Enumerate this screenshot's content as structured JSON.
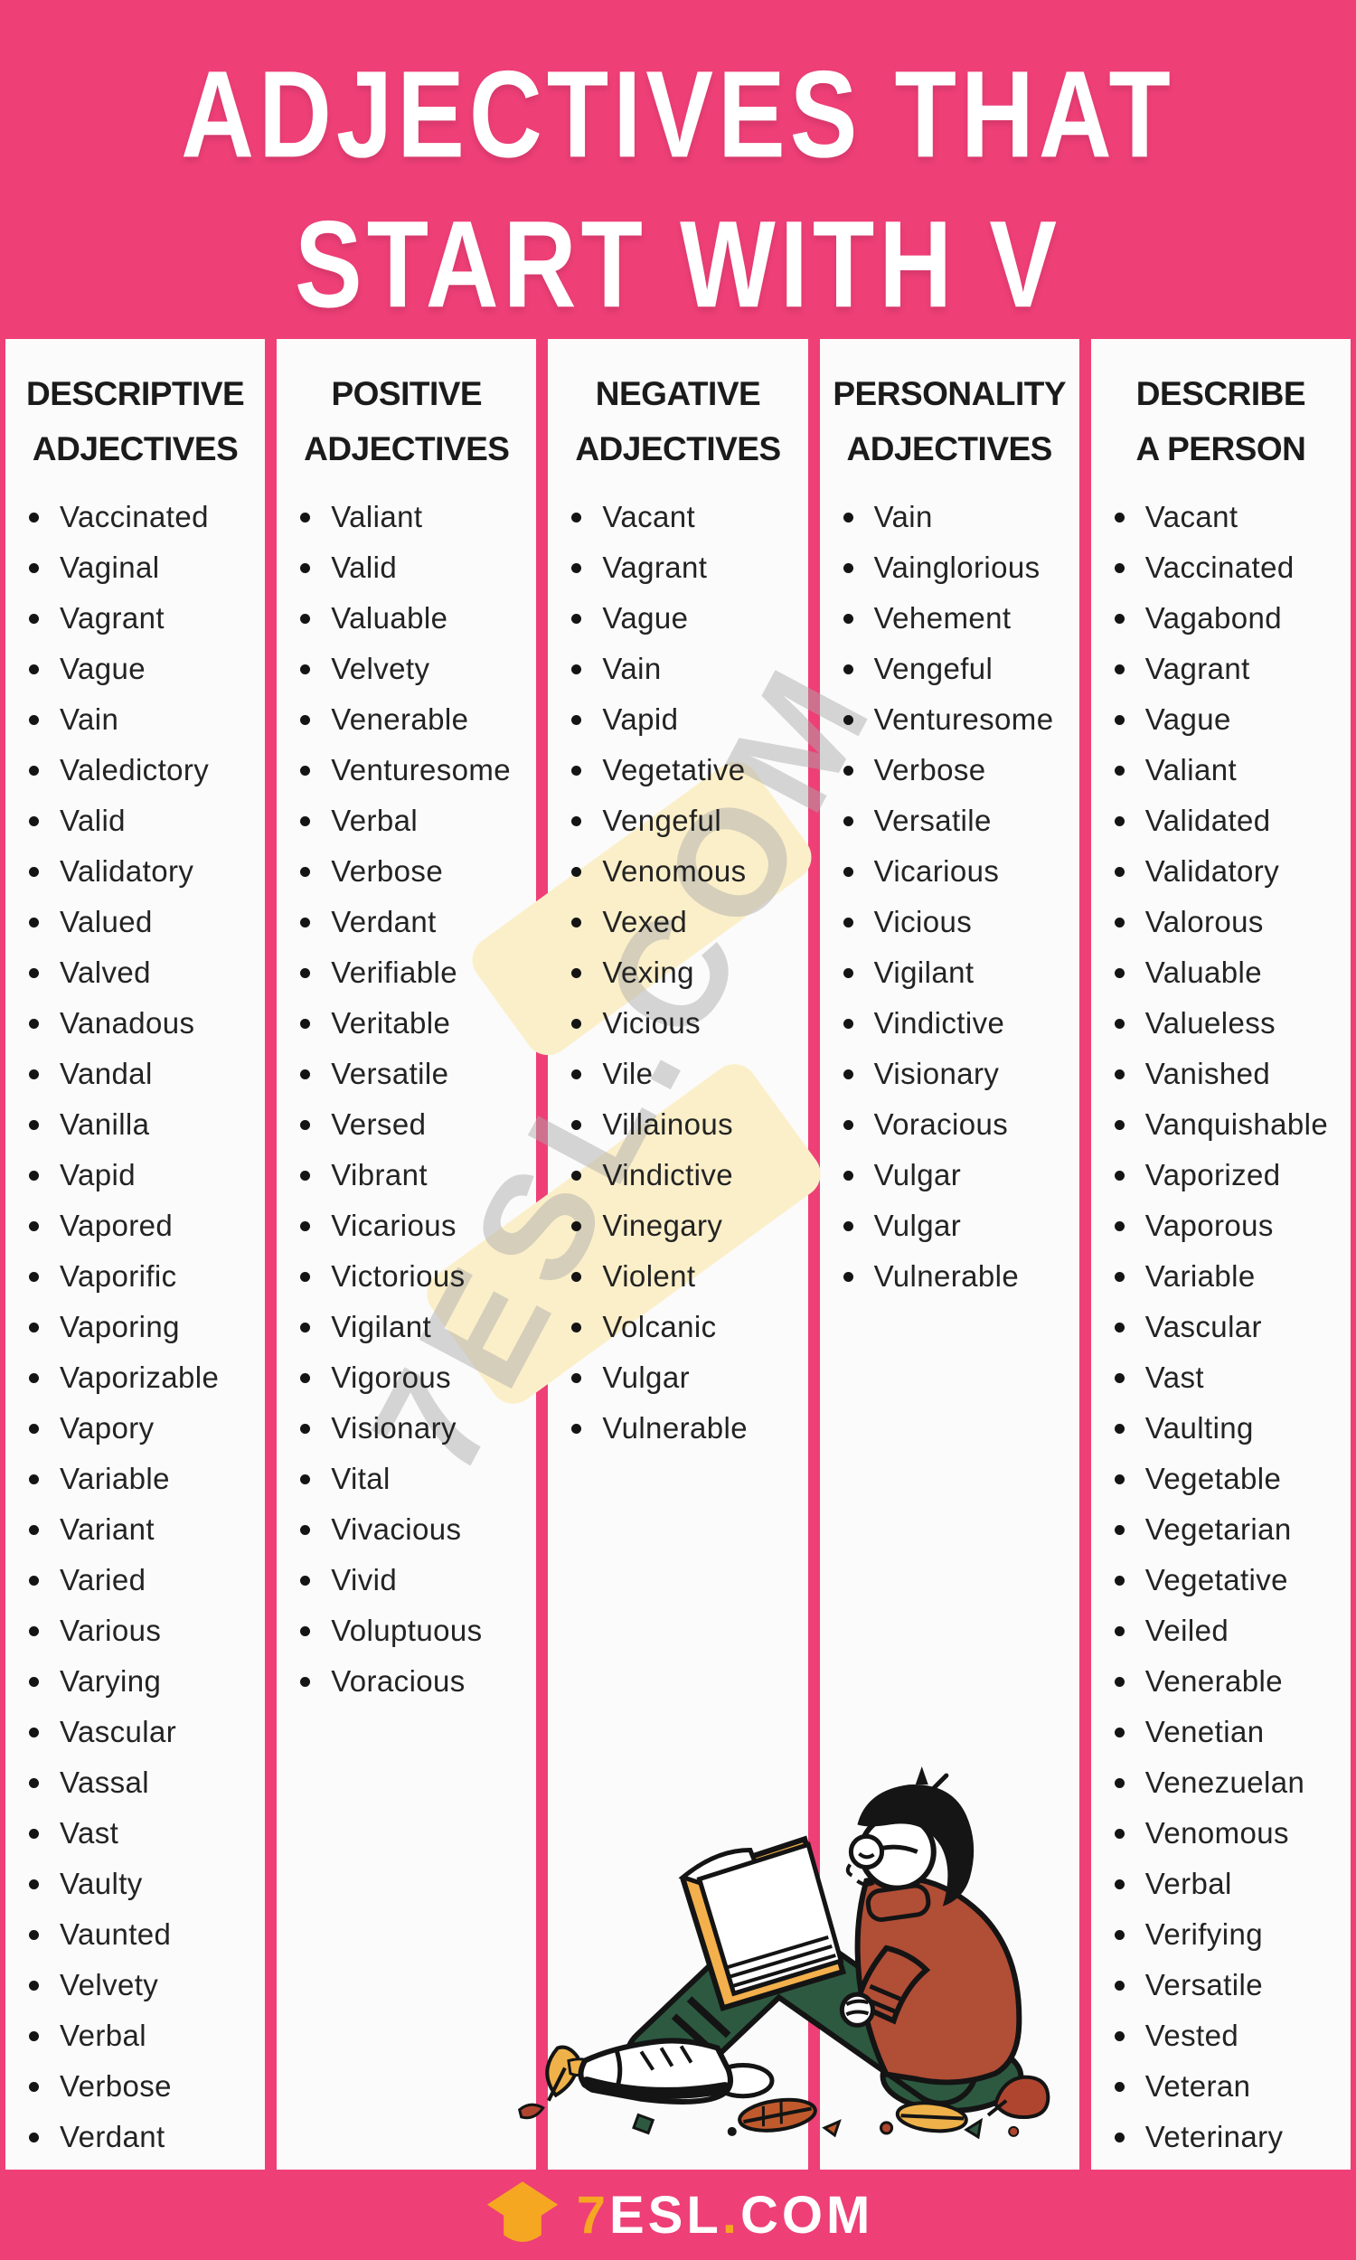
{
  "page": {
    "title_line1": "ADJECTIVES THAT",
    "title_line2": "START WITH V"
  },
  "columns": [
    {
      "header_line1": "DESCRIPTIVE",
      "header_line2": "ADJECTIVES",
      "words": [
        "Vaccinated",
        "Vaginal",
        "Vagrant",
        "Vague",
        "Vain",
        "Valedictory",
        "Valid",
        "Validatory",
        "Valued",
        "Valved",
        "Vanadous",
        "Vandal",
        "Vanilla",
        "Vapid",
        "Vapored",
        "Vaporific",
        "Vaporing",
        "Vaporizable",
        "Vapory",
        "Variable",
        "Variant",
        "Varied",
        "Various",
        "Varying",
        "Vascular",
        "Vassal",
        "Vast",
        "Vaulty",
        "Vaunted",
        "Velvety",
        "Verbal",
        "Verbose",
        "Verdant"
      ]
    },
    {
      "header_line1": "POSITIVE",
      "header_line2": "ADJECTIVES",
      "words": [
        "Valiant",
        "Valid",
        "Valuable",
        "Velvety",
        "Venerable",
        "Venturesome",
        "Verbal",
        "Verbose",
        "Verdant",
        "Verifiable",
        "Veritable",
        "Versatile",
        "Versed",
        "Vibrant",
        "Vicarious",
        "Victorious",
        "Vigilant",
        "Vigorous",
        "Visionary",
        "Vital",
        "Vivacious",
        "Vivid",
        "Voluptuous",
        "Voracious"
      ]
    },
    {
      "header_line1": "NEGATIVE",
      "header_line2": "ADJECTIVES",
      "words": [
        "Vacant",
        "Vagrant",
        "Vague",
        "Vain",
        "Vapid",
        "Vegetative",
        "Vengeful",
        "Venomous",
        "Vexed",
        "Vexing",
        "Vicious",
        "Vile",
        "Villainous",
        "Vindictive",
        "Vinegary",
        "Violent",
        "Volcanic",
        "Vulgar",
        "Vulnerable"
      ]
    },
    {
      "header_line1": "PERSONALITY",
      "header_line2": "ADJECTIVES",
      "words": [
        "Vain",
        "Vainglorious",
        "Vehement",
        "Vengeful",
        "Venturesome",
        "Verbose",
        "Versatile",
        "Vicarious",
        "Vicious",
        "Vigilant",
        "Vindictive",
        "Visionary",
        "Voracious",
        "Vulgar",
        "Vulgar",
        "Vulnerable"
      ]
    },
    {
      "header_line1": "DESCRIBE",
      "header_line2": "A PERSON",
      "words": [
        "Vacant",
        "Vaccinated",
        "Vagabond",
        "Vagrant",
        "Vague",
        "Valiant",
        "Validated",
        "Validatory",
        "Valorous",
        "Valuable",
        "Valueless",
        "Vanished",
        "Vanquishable",
        "Vaporized",
        "Vaporous",
        "Variable",
        "Vascular",
        "Vast",
        "Vaulting",
        "Vegetable",
        "Vegetarian",
        "Vegetative",
        "Veiled",
        "Venerable",
        "Venetian",
        "Venezuelan",
        "Venomous",
        "Verbal",
        "Verifying",
        "Versatile",
        "Vested",
        "Veteran",
        "Veterinary"
      ]
    }
  ],
  "watermark": {
    "text": "7ESL.COM"
  },
  "footer": {
    "brand_7": "7",
    "brand_esl": "ESL",
    "brand_dot": ".",
    "brand_com": "COM"
  },
  "colors": {
    "background_pink": "#EE3F77",
    "card_white": "#FBFBFB",
    "text_black": "#1B1B1B",
    "logo_orange": "#F6A722",
    "watermark_cream": "#FBEFC9",
    "watermark_gray": "#AAAAAA",
    "sweater_rust": "#B14E36",
    "pants_green": "#2D5940",
    "book_orange": "#F3B04C"
  }
}
